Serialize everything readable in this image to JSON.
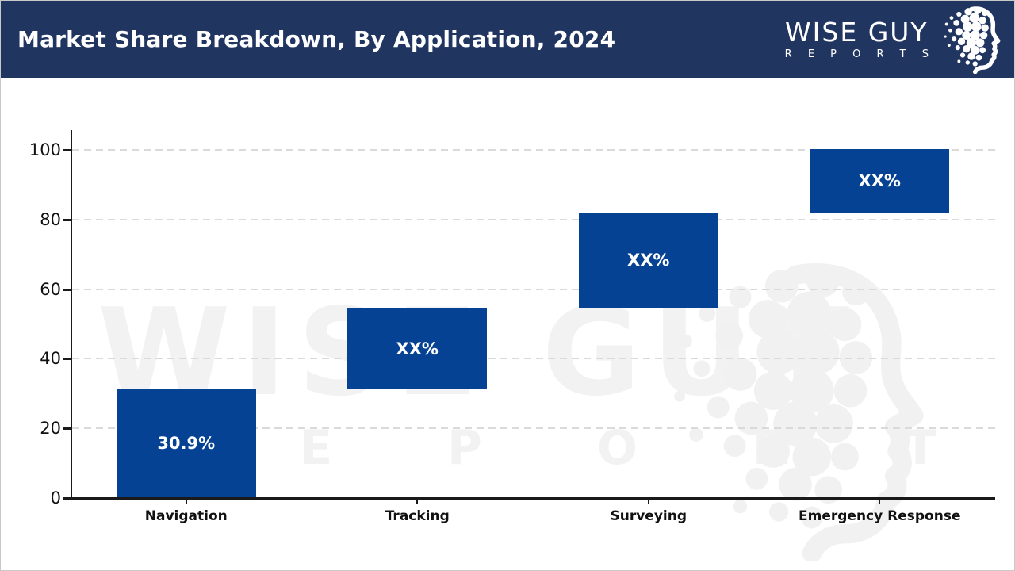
{
  "header": {
    "title": "Market Share Breakdown, By Application, 2024",
    "logo": {
      "line1": "WISE GUY",
      "line2": "R E P O R T S"
    }
  },
  "watermark": {
    "line1": "WISE GUY",
    "line2": "R E P O R T S"
  },
  "colors": {
    "header_bg": "#213561",
    "bar": "#064294",
    "gridline": "#dadada",
    "axis": "#1a1a1a",
    "bar_label_text": "#ffffff",
    "tick_text": "#111111"
  },
  "chart_data": {
    "type": "bar",
    "subtype": "waterfall",
    "title": "Market Share Breakdown, By Application, 2024",
    "categories": [
      "Navigation",
      "Tracking",
      "Surveying",
      "Emergency Response"
    ],
    "segments": [
      {
        "category": "Navigation",
        "from": 0,
        "to": 30.9,
        "label": "30.9%"
      },
      {
        "category": "Tracking",
        "from": 30.9,
        "to": 54.4,
        "label": "XX%"
      },
      {
        "category": "Surveying",
        "from": 54.4,
        "to": 81.7,
        "label": "XX%"
      },
      {
        "category": "Emergency Response",
        "from": 81.7,
        "to": 100,
        "label": "XX%"
      }
    ],
    "y_ticks": [
      0,
      20,
      40,
      60,
      80,
      100
    ],
    "ylim": [
      0,
      105
    ],
    "xlabel": "",
    "ylabel": "",
    "grid": "dashed-horizontal",
    "legend": "none"
  }
}
